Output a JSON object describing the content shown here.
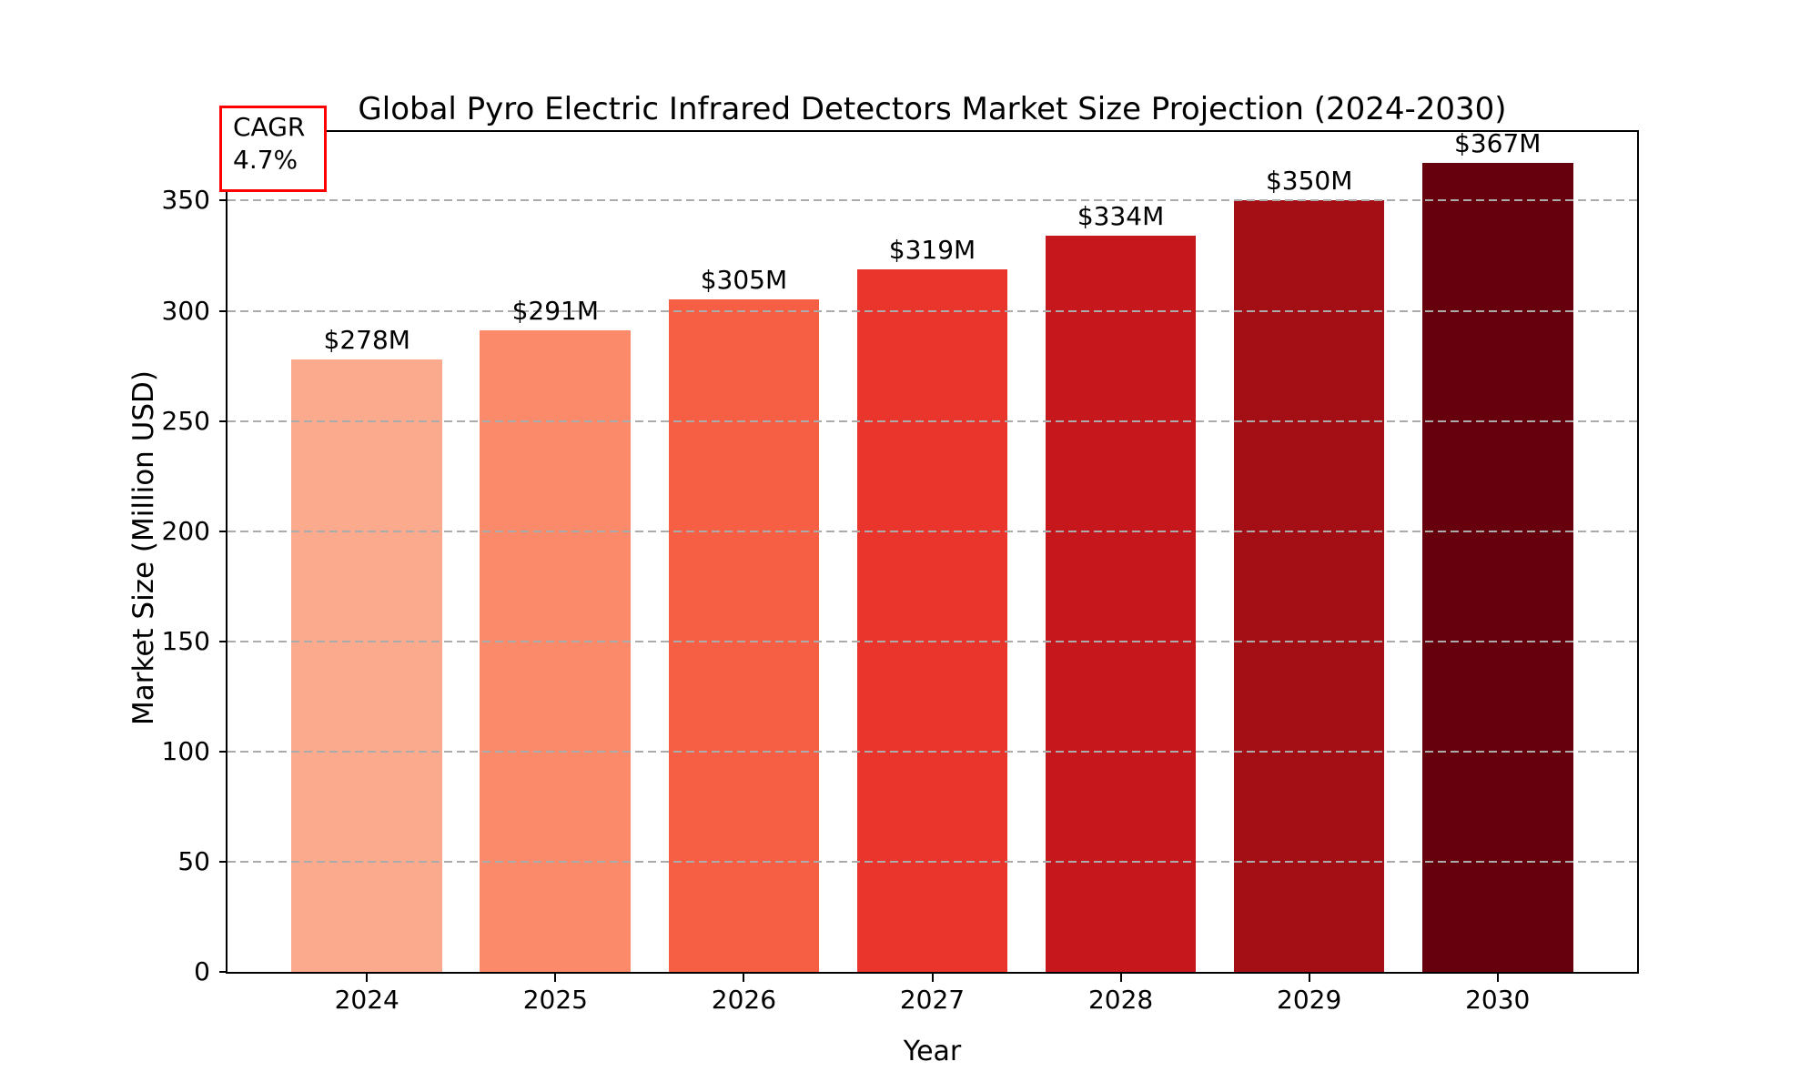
{
  "chart_data": {
    "type": "bar",
    "title": "Global Pyro Electric Infrared Detectors Market Size Projection (2024-2030)",
    "xlabel": "Year",
    "ylabel": "Market Size (Million USD)",
    "categories": [
      "2024",
      "2025",
      "2026",
      "2027",
      "2028",
      "2029",
      "2030"
    ],
    "values": [
      278,
      291,
      305,
      319,
      334,
      350,
      367
    ],
    "value_labels": [
      "$278M",
      "$291M",
      "$305M",
      "$319M",
      "$334M",
      "$350M",
      "$367M"
    ],
    "bar_colors": [
      "#FBAA8D",
      "#FA8A6A",
      "#F75F44",
      "#E9352B",
      "#C5171C",
      "#A30F15",
      "#67000D"
    ],
    "yticks": [
      0,
      50,
      100,
      150,
      200,
      250,
      300,
      350
    ],
    "ylim": [
      0,
      382
    ],
    "grid": "horizontal-dashed",
    "gridline_color": "#ababab",
    "legend": "none",
    "annotation": "CAGR 4.7%"
  },
  "annotation_box": {
    "line1": "CAGR",
    "line2": "4.7%",
    "border_color": "#ff0000"
  }
}
